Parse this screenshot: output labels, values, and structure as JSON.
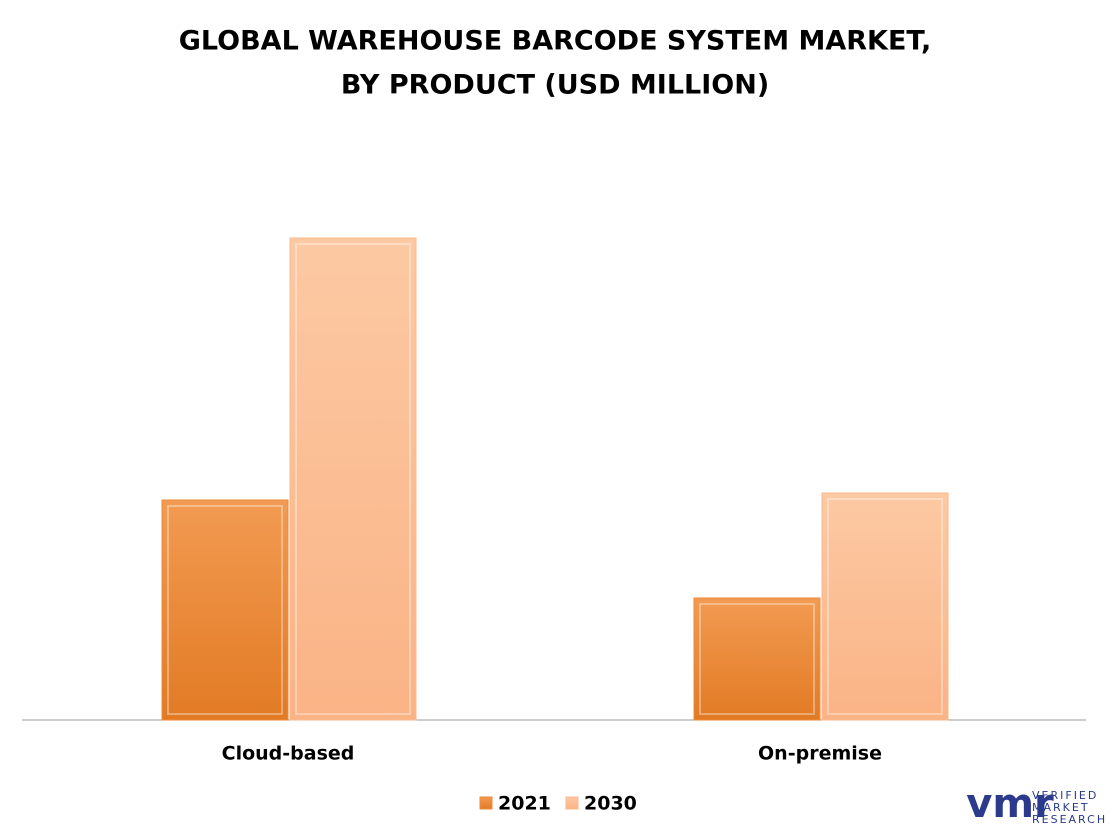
{
  "chart_data": {
    "type": "bar",
    "title": [
      "GLOBAL WAREHOUSE BARCODE SYSTEM MARKET,",
      "BY PRODUCT (USD MILLION)"
    ],
    "categories": [
      "Cloud-based",
      "On-premise"
    ],
    "series": [
      {
        "name": "2021",
        "color": "#ed8a3a",
        "values": [
          220,
          122
        ]
      },
      {
        "name": "2030",
        "color": "#fbb98e",
        "values": [
          482,
          227
        ]
      }
    ],
    "legend": "bottom",
    "logo": {
      "mark": "vmr",
      "lines": [
        "VERIFIED",
        "MARKET",
        "RESEARCH"
      ]
    }
  }
}
